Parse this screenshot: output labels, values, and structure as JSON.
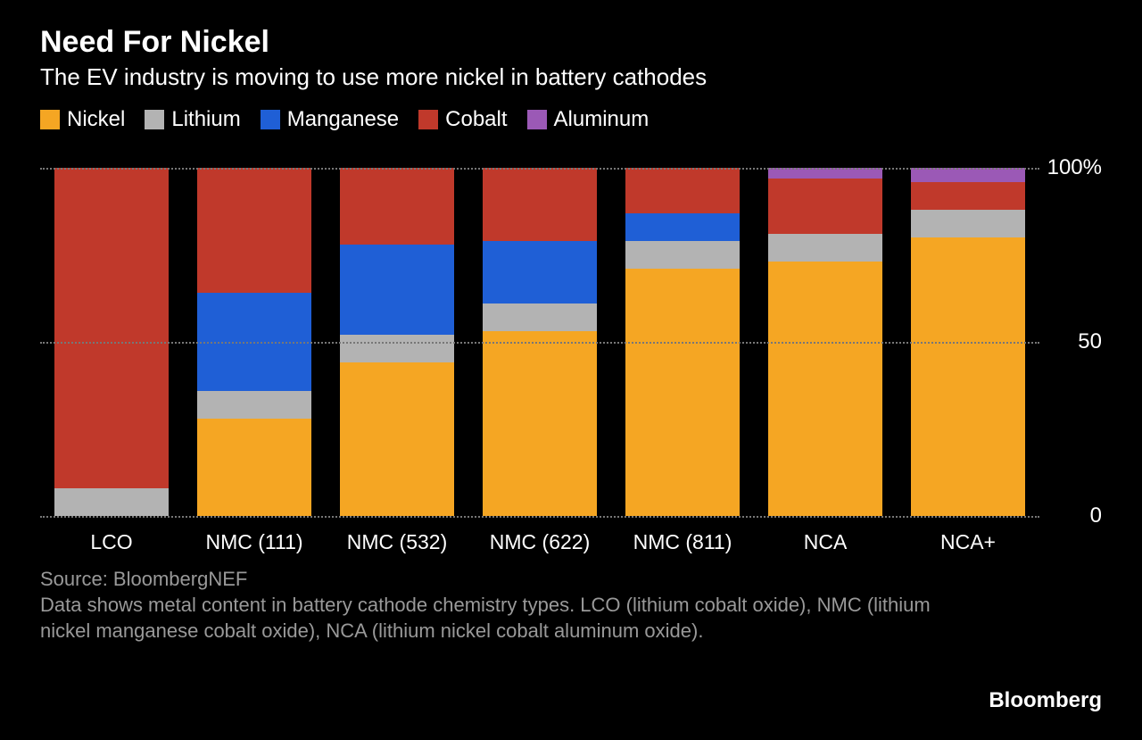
{
  "title": "Need For Nickel",
  "subtitle": "The EV industry is moving to use more nickel in battery cathodes",
  "legend": [
    {
      "label": "Nickel",
      "color": "#f5a623"
    },
    {
      "label": "Lithium",
      "color": "#b3b3b3"
    },
    {
      "label": "Manganese",
      "color": "#1f5fd6"
    },
    {
      "label": "Cobalt",
      "color": "#c0392b"
    },
    {
      "label": "Aluminum",
      "color": "#9b59b6"
    }
  ],
  "chart": {
    "type": "stacked-bar",
    "ylim": [
      0,
      100
    ],
    "yticks": [
      {
        "value": 0,
        "label": "0"
      },
      {
        "value": 50,
        "label": "50"
      },
      {
        "value": 100,
        "label": "100%"
      }
    ],
    "grid_color": "#777777",
    "background_color": "#000000",
    "categories": [
      "LCO",
      "NMC (111)",
      "NMC (532)",
      "NMC (622)",
      "NMC (811)",
      "NCA",
      "NCA+"
    ],
    "series_order": [
      "Nickel",
      "Lithium",
      "Manganese",
      "Cobalt",
      "Aluminum"
    ],
    "series_colors": {
      "Nickel": "#f5a623",
      "Lithium": "#b3b3b3",
      "Manganese": "#1f5fd6",
      "Cobalt": "#c0392b",
      "Aluminum": "#9b59b6"
    },
    "data": [
      {
        "Nickel": 0,
        "Lithium": 8,
        "Manganese": 0,
        "Cobalt": 92,
        "Aluminum": 0
      },
      {
        "Nickel": 28,
        "Lithium": 8,
        "Manganese": 28,
        "Cobalt": 36,
        "Aluminum": 0
      },
      {
        "Nickel": 44,
        "Lithium": 8,
        "Manganese": 26,
        "Cobalt": 22,
        "Aluminum": 0
      },
      {
        "Nickel": 53,
        "Lithium": 8,
        "Manganese": 18,
        "Cobalt": 21,
        "Aluminum": 0
      },
      {
        "Nickel": 71,
        "Lithium": 8,
        "Manganese": 8,
        "Cobalt": 13,
        "Aluminum": 0
      },
      {
        "Nickel": 73,
        "Lithium": 8,
        "Manganese": 0,
        "Cobalt": 16,
        "Aluminum": 3
      },
      {
        "Nickel": 80,
        "Lithium": 8,
        "Manganese": 0,
        "Cobalt": 8,
        "Aluminum": 4
      }
    ],
    "bar_width_pct": 80,
    "label_fontsize": 23,
    "tick_fontsize": 24
  },
  "source": "Source: BloombergNEF",
  "note": "Data shows metal content in battery cathode chemistry types. LCO (lithium cobalt oxide), NMC (lithium nickel manganese cobalt oxide), NCA (lithium nickel cobalt aluminum oxide).",
  "brand": "Bloomberg"
}
